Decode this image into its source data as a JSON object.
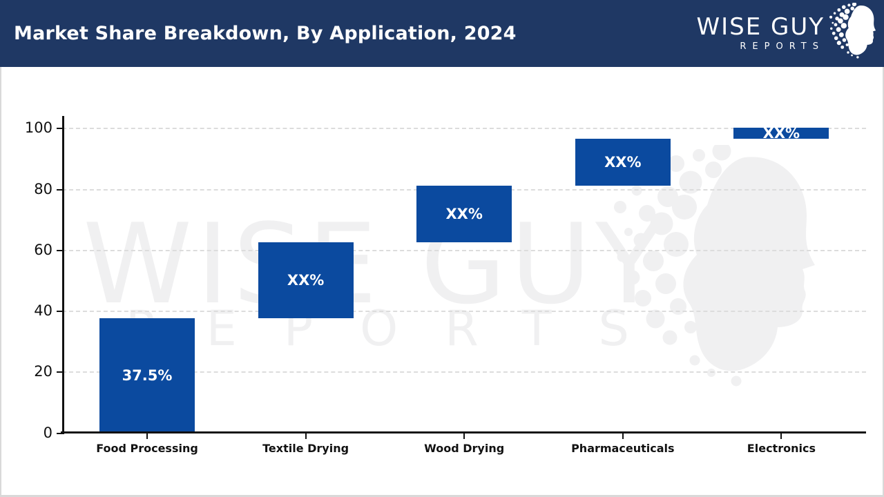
{
  "header": {
    "title": "Market Share Breakdown, By Application, 2024",
    "logo": {
      "line1": "WISE GUY",
      "line2": "REPORTS"
    }
  },
  "watermark": {
    "line1": "WISE GUY",
    "line2": "REPORTS"
  },
  "colors": {
    "header_bg": "#1f3864",
    "bar": "#0b4a9f",
    "grid": "#dcdcdc",
    "axis": "#111111",
    "bar_label": "#ffffff",
    "watermark": "#f0f0f1"
  },
  "chart_data": {
    "type": "bar",
    "subtype": "waterfall",
    "title": "Market Share Breakdown, By Application, 2024",
    "xlabel": "",
    "ylabel": "",
    "categories": [
      "Food Processing",
      "Textile Drying",
      "Wood Drying",
      "Pharmaceuticals",
      "Electronics"
    ],
    "segments": [
      {
        "category": "Food Processing",
        "start": 0,
        "end": 37.5,
        "label": "37.5%"
      },
      {
        "category": "Textile Drying",
        "start": 37.5,
        "end": 62.5,
        "label": "XX%"
      },
      {
        "category": "Wood Drying",
        "start": 62.5,
        "end": 81,
        "label": "XX%"
      },
      {
        "category": "Pharmaceuticals",
        "start": 81,
        "end": 96.5,
        "label": "XX%"
      },
      {
        "category": "Electronics",
        "start": 96.5,
        "end": 100,
        "label": "XX%"
      }
    ],
    "yticks": [
      0,
      20,
      40,
      60,
      80,
      100
    ],
    "ylim": [
      0,
      104
    ],
    "grid": "horizontal-dashed",
    "legend": "none"
  }
}
